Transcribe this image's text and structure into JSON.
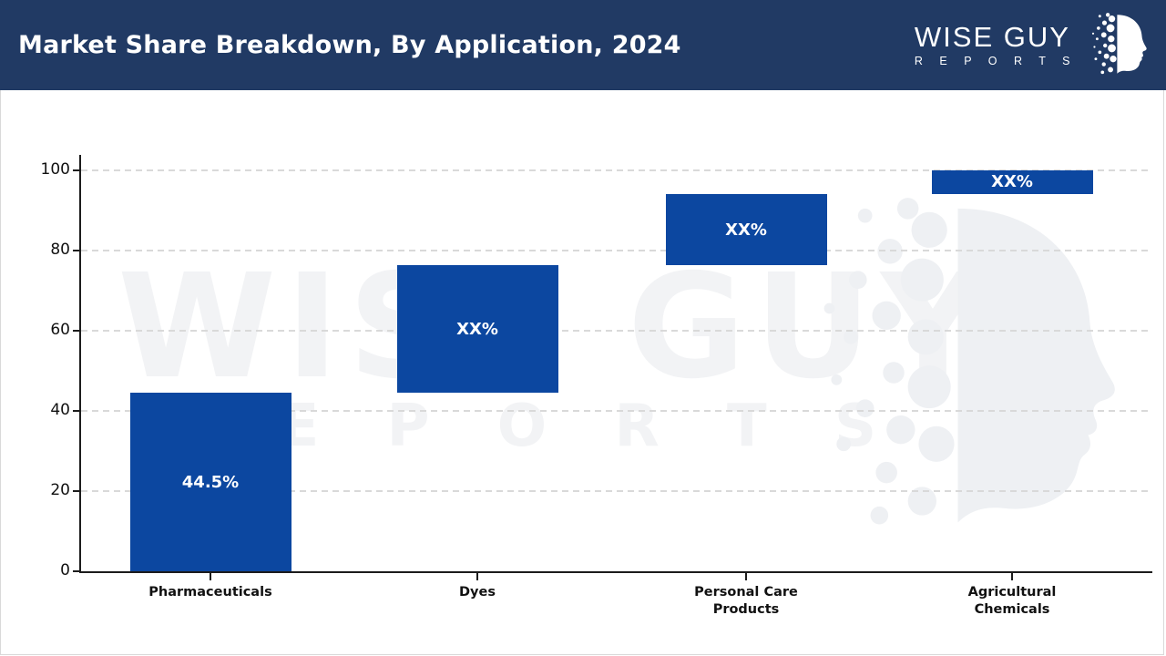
{
  "header": {
    "title": "Market Share Breakdown, By Application, 2024",
    "bg_color": "#213a64",
    "logo": {
      "line1": "WISE GUY",
      "line2": "R E P O R T S"
    }
  },
  "watermark": {
    "line1": "WISE GUY",
    "line2": "R E P O R T S"
  },
  "chart_data": {
    "type": "bar",
    "variant": "waterfall",
    "title": "Market Share Breakdown, By Application, 2024",
    "categories": [
      [
        "Pharmaceuticals"
      ],
      [
        "Dyes"
      ],
      [
        "Personal Care",
        "Products"
      ],
      [
        "Agricultural",
        "Chemicals"
      ]
    ],
    "bars": [
      {
        "category": "Pharmaceuticals",
        "start": 0,
        "end": 44.5,
        "label": "44.5%"
      },
      {
        "category": "Dyes",
        "start": 44.5,
        "end": 76.3,
        "label": "XX%"
      },
      {
        "category": "Personal Care Products",
        "start": 76.3,
        "end": 94.1,
        "label": "XX%"
      },
      {
        "category": "Agricultural Chemicals",
        "start": 94.1,
        "end": 100,
        "label": "XX%"
      }
    ],
    "ylim": [
      0,
      100
    ],
    "yticks": [
      0,
      20,
      40,
      60,
      80,
      100
    ],
    "xlabel": "",
    "ylabel": "",
    "legend": "none",
    "grid": "horizontal-dashed",
    "bar_color": "#0c47a0",
    "grid_color": "#d9d9d9",
    "axis_color": "#1c1c1c"
  }
}
